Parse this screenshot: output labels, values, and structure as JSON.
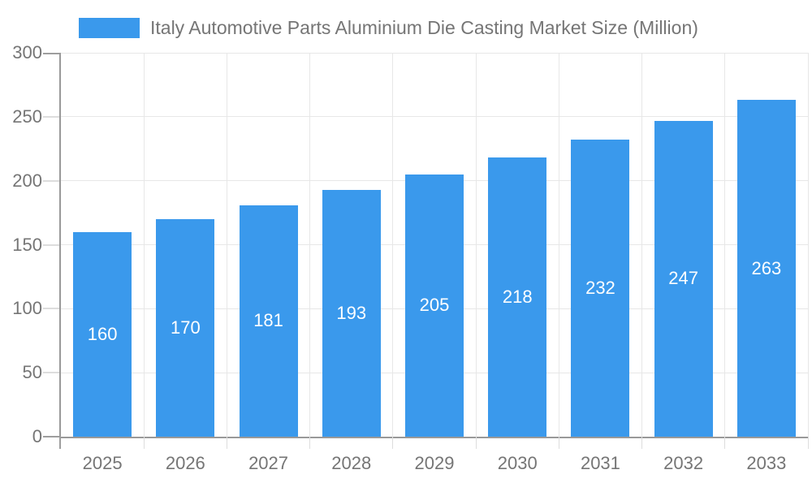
{
  "chart_data": {
    "type": "bar",
    "legend_label": "Italy Automotive Parts Aluminium Die Casting Market Size (Million)",
    "categories": [
      "2025",
      "2026",
      "2027",
      "2028",
      "2029",
      "2030",
      "2031",
      "2032",
      "2033"
    ],
    "values": [
      160,
      170,
      181,
      193,
      205,
      218,
      232,
      247,
      263
    ],
    "title": "",
    "xlabel": "",
    "ylabel": "",
    "ylim": [
      0,
      300
    ],
    "y_ticks": [
      0,
      50,
      100,
      150,
      200,
      250,
      300
    ],
    "grid": true,
    "legend_position": "top-left",
    "value_labels": "inside-center",
    "colors": {
      "bar": "#3A99EC",
      "axis_line": "#999999",
      "gridline": "#E7E7E7",
      "tick_minor": "#DDDDDD",
      "tick_major": "#9E9E9E",
      "axis_text": "#757575",
      "value_label_text": "#FFFFFF",
      "background": "#FFFFFF"
    }
  }
}
